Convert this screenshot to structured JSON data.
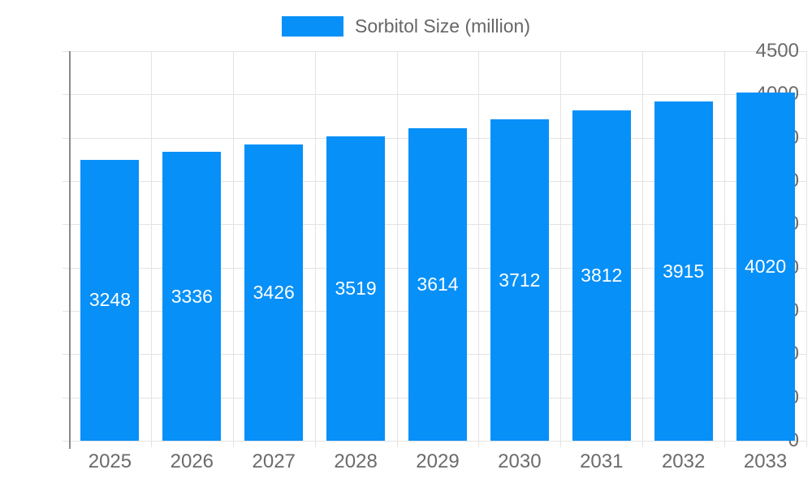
{
  "legend": {
    "label": "Sorbitol Size (million)"
  },
  "chart_data": {
    "type": "bar",
    "title": "Sorbitol Size (million)",
    "series_name": "Sorbitol Size (million)",
    "categories": [
      "2025",
      "2026",
      "2027",
      "2028",
      "2029",
      "2030",
      "2031",
      "2032",
      "2033"
    ],
    "values": [
      3248,
      3336,
      3426,
      3519,
      3614,
      3712,
      3812,
      3915,
      4020
    ],
    "data_labels": [
      3248,
      3336,
      3426,
      3519,
      3614,
      3712,
      3812,
      3915,
      4020
    ],
    "xlabel": "",
    "ylabel": "",
    "ylim": [
      0,
      4500
    ],
    "ytick_step": 500,
    "y_tick_labels": [
      "0",
      "500",
      "1000",
      "1500",
      "2000",
      "2500",
      "3000",
      "3500",
      "4000",
      "4500"
    ],
    "legend_position": "top",
    "grid": "on",
    "colors": {
      "bar": "#0690f8",
      "bar_label": "#ffffff",
      "gridline": "#e3e3e3",
      "axis_line": "#8a8a8a",
      "axis_text": "#6b6b6b",
      "legend_text": "#666666"
    }
  }
}
